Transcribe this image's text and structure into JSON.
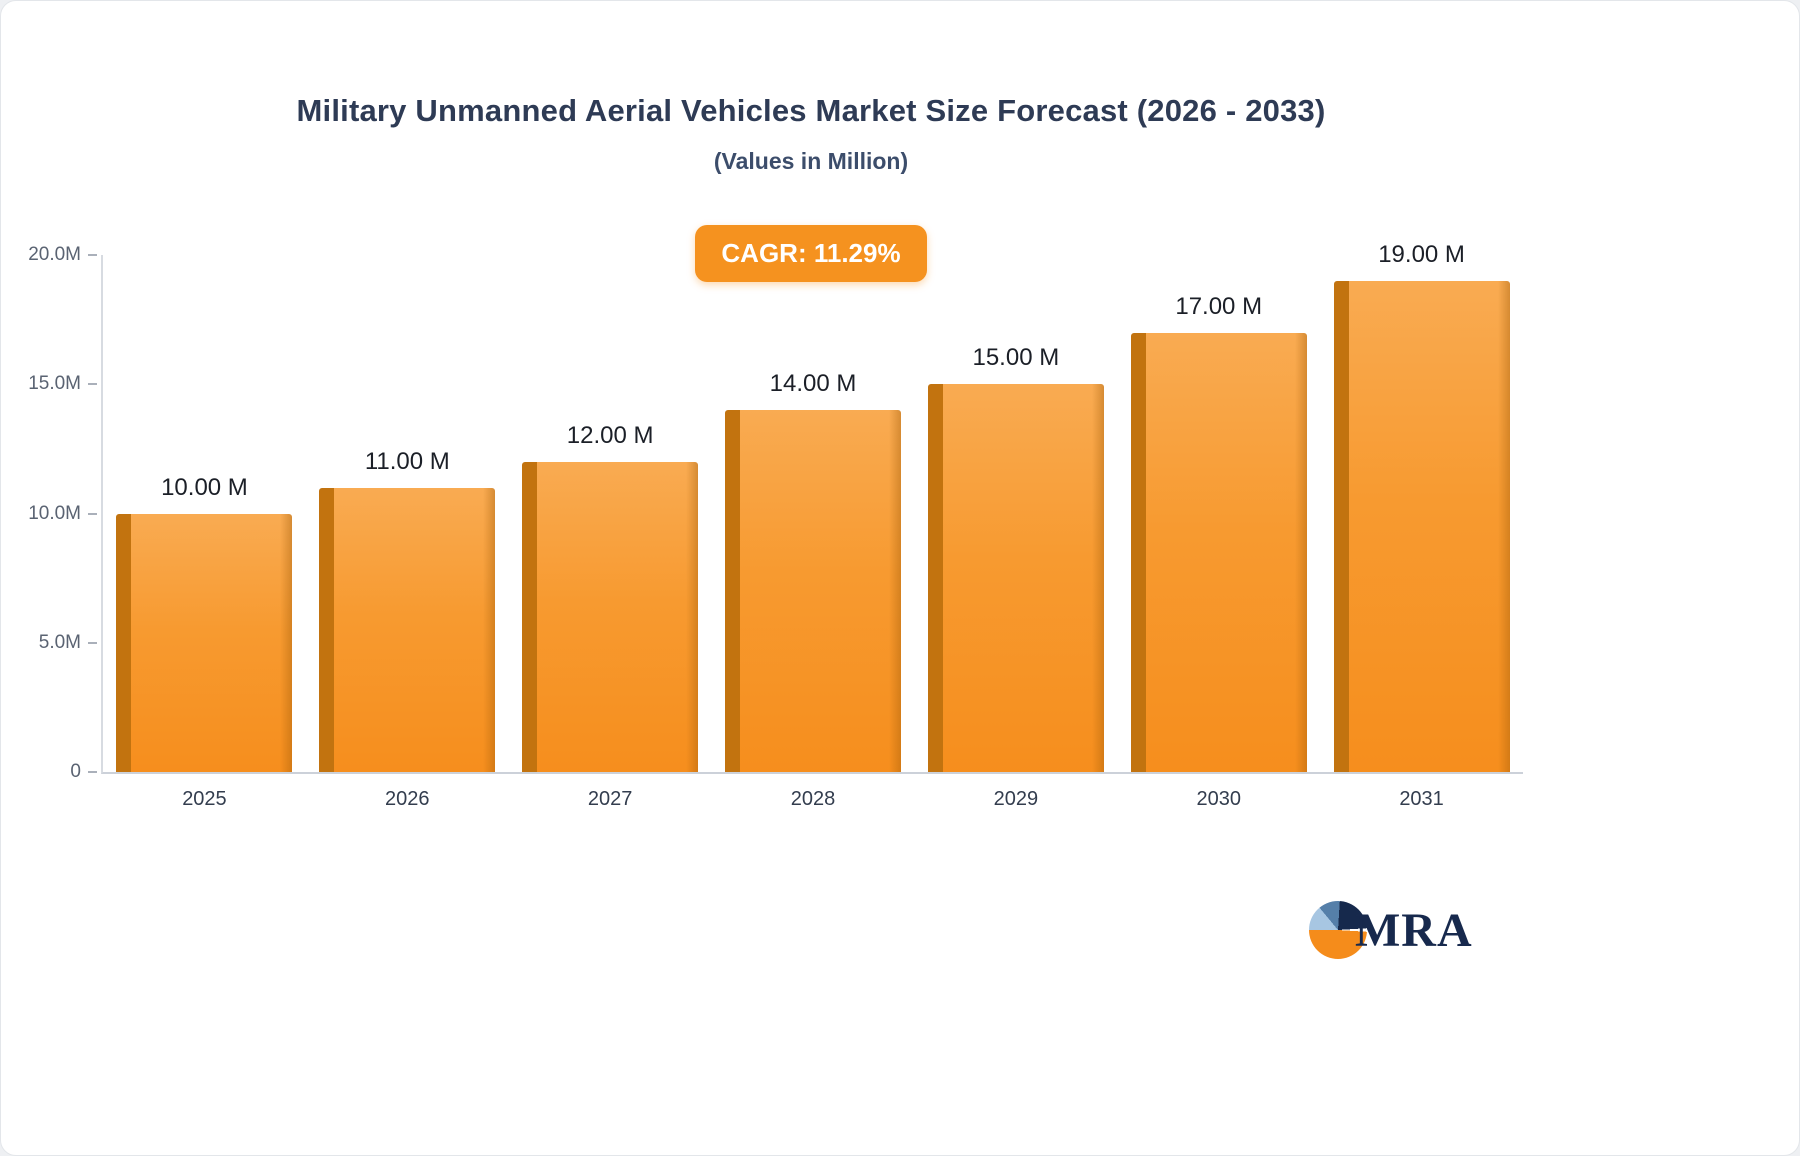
{
  "title": "Military Unmanned Aerial Vehicles Market Size Forecast (2026 - 2033)",
  "subtitle": "(Values in Million)",
  "badge": {
    "label": "CAGR: 11.29%",
    "color": "#f5921f"
  },
  "logo": {
    "text": "MRA"
  },
  "chart_data": {
    "type": "bar",
    "title": "Military Unmanned Aerial Vehicles Market Size Forecast (2026 - 2033)",
    "subtitle": "(Values in Million)",
    "categories": [
      "2025",
      "2026",
      "2027",
      "2028",
      "2029",
      "2030",
      "2031"
    ],
    "values": [
      10,
      11,
      12,
      14,
      15,
      17,
      19
    ],
    "value_labels": [
      "10.00 M",
      "11.00 M",
      "12.00 M",
      "14.00 M",
      "15.00 M",
      "17.00 M",
      "19.00 M"
    ],
    "y_ticks": [
      {
        "label": "20.0M",
        "value": 20
      },
      {
        "label": "15.0M",
        "value": 15
      },
      {
        "label": "10.0M",
        "value": 10
      },
      {
        "label": "5.0M",
        "value": 5
      },
      {
        "label": "0",
        "value": 0
      }
    ],
    "ylim": [
      0,
      20
    ],
    "xlabel": "",
    "ylabel": "",
    "grid": false,
    "legend": false,
    "bar_color_top": "#f9ab52",
    "bar_color_bottom": "#f68e1d",
    "bar_side_color": "#c2730f",
    "annotation": "CAGR: 11.29%"
  }
}
